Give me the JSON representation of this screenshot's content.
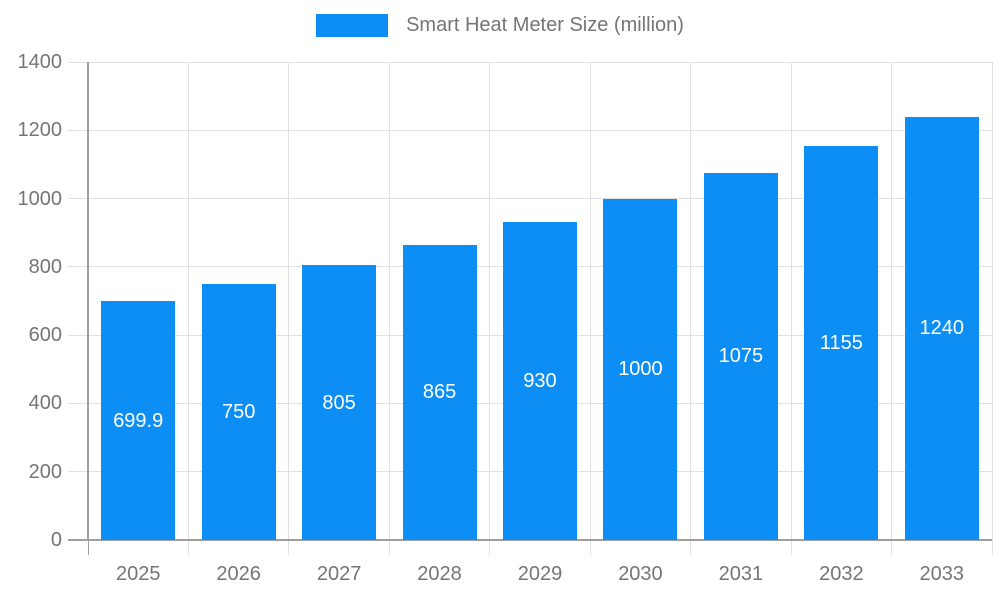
{
  "chart_data": {
    "type": "bar",
    "title": "Smart Heat Meter Size (million)",
    "categories": [
      "2025",
      "2026",
      "2027",
      "2028",
      "2029",
      "2030",
      "2031",
      "2032",
      "2033"
    ],
    "values": [
      699.9,
      750,
      805,
      865,
      930,
      1000,
      1075,
      1155,
      1240
    ],
    "value_labels": [
      "699.9",
      "750",
      "805",
      "865",
      "930",
      "1000",
      "1075",
      "1155",
      "1240"
    ],
    "xlabel": "",
    "ylabel": "",
    "ylim": [
      0,
      1400
    ],
    "yticks": [
      0,
      200,
      400,
      600,
      800,
      1000,
      1200,
      1400
    ],
    "grid": true,
    "legend_position": "top",
    "colors": {
      "bar": "#0d8ef4",
      "grid": "#e0e0e0",
      "axis": "#9e9e9e",
      "text": "#757575",
      "value_label": "#ffffff",
      "background": "#ffffff"
    }
  }
}
